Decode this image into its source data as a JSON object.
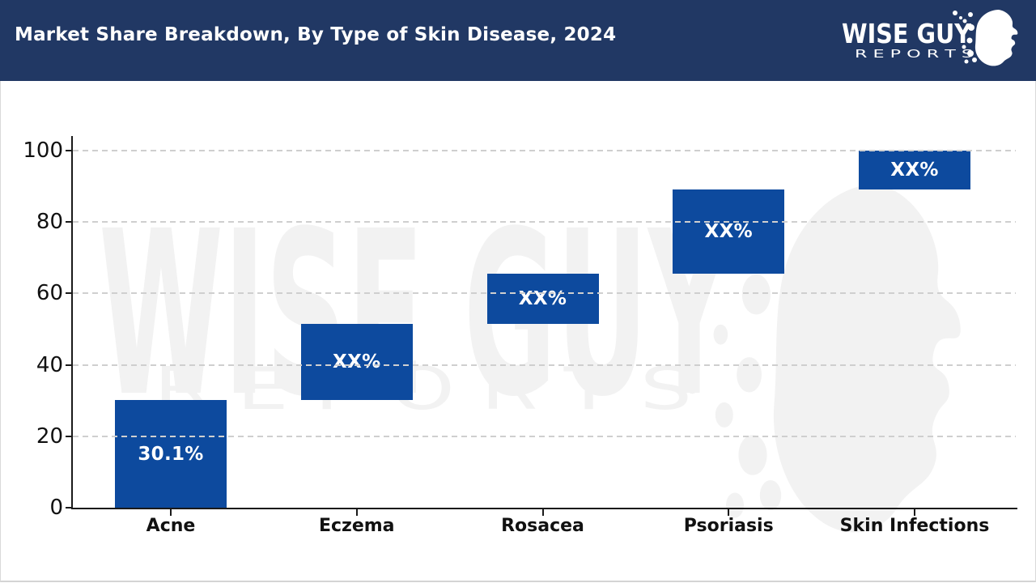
{
  "header": {
    "title": "Market Share Breakdown, By Type of Skin Disease, 2024"
  },
  "logo": {
    "name": "WISE GUY",
    "sub": "R E P O R T S"
  },
  "watermark": {
    "name": "WISE GUY",
    "sub": "R E P O R T S"
  },
  "colors": {
    "header_bg": "#213864",
    "bar": "#0d4a9e",
    "grid": "#cfcfcf",
    "axis": "#1a1a1a",
    "bar_label": "#ffffff",
    "watermark": "#f2f2f2"
  },
  "chart_data": {
    "type": "bar",
    "subtype": "floating-waterfall",
    "title": "Market Share Breakdown, By Type of Skin Disease, 2024",
    "categories": [
      "Acne",
      "Eczema",
      "Rosacea",
      "Psoriasis",
      "Skin Infections"
    ],
    "bars": [
      {
        "category": "Acne",
        "start": 0,
        "end": 30.1,
        "label": "30.1%"
      },
      {
        "category": "Eczema",
        "start": 30.1,
        "end": 51.5,
        "label": "XX%"
      },
      {
        "category": "Rosacea",
        "start": 51.5,
        "end": 65.6,
        "label": "XX%"
      },
      {
        "category": "Psoriasis",
        "start": 65.6,
        "end": 89.1,
        "label": "XX%"
      },
      {
        "category": "Skin Infections",
        "start": 89.1,
        "end": 100,
        "label": "XX%"
      }
    ],
    "xlabel": "",
    "ylabel": "",
    "ylim": [
      0,
      100
    ],
    "yticks": [
      0,
      20,
      40,
      60,
      80,
      100
    ],
    "grid": "dashed-horizontal",
    "legend": "none",
    "bar_color": "#0d4a9e"
  }
}
